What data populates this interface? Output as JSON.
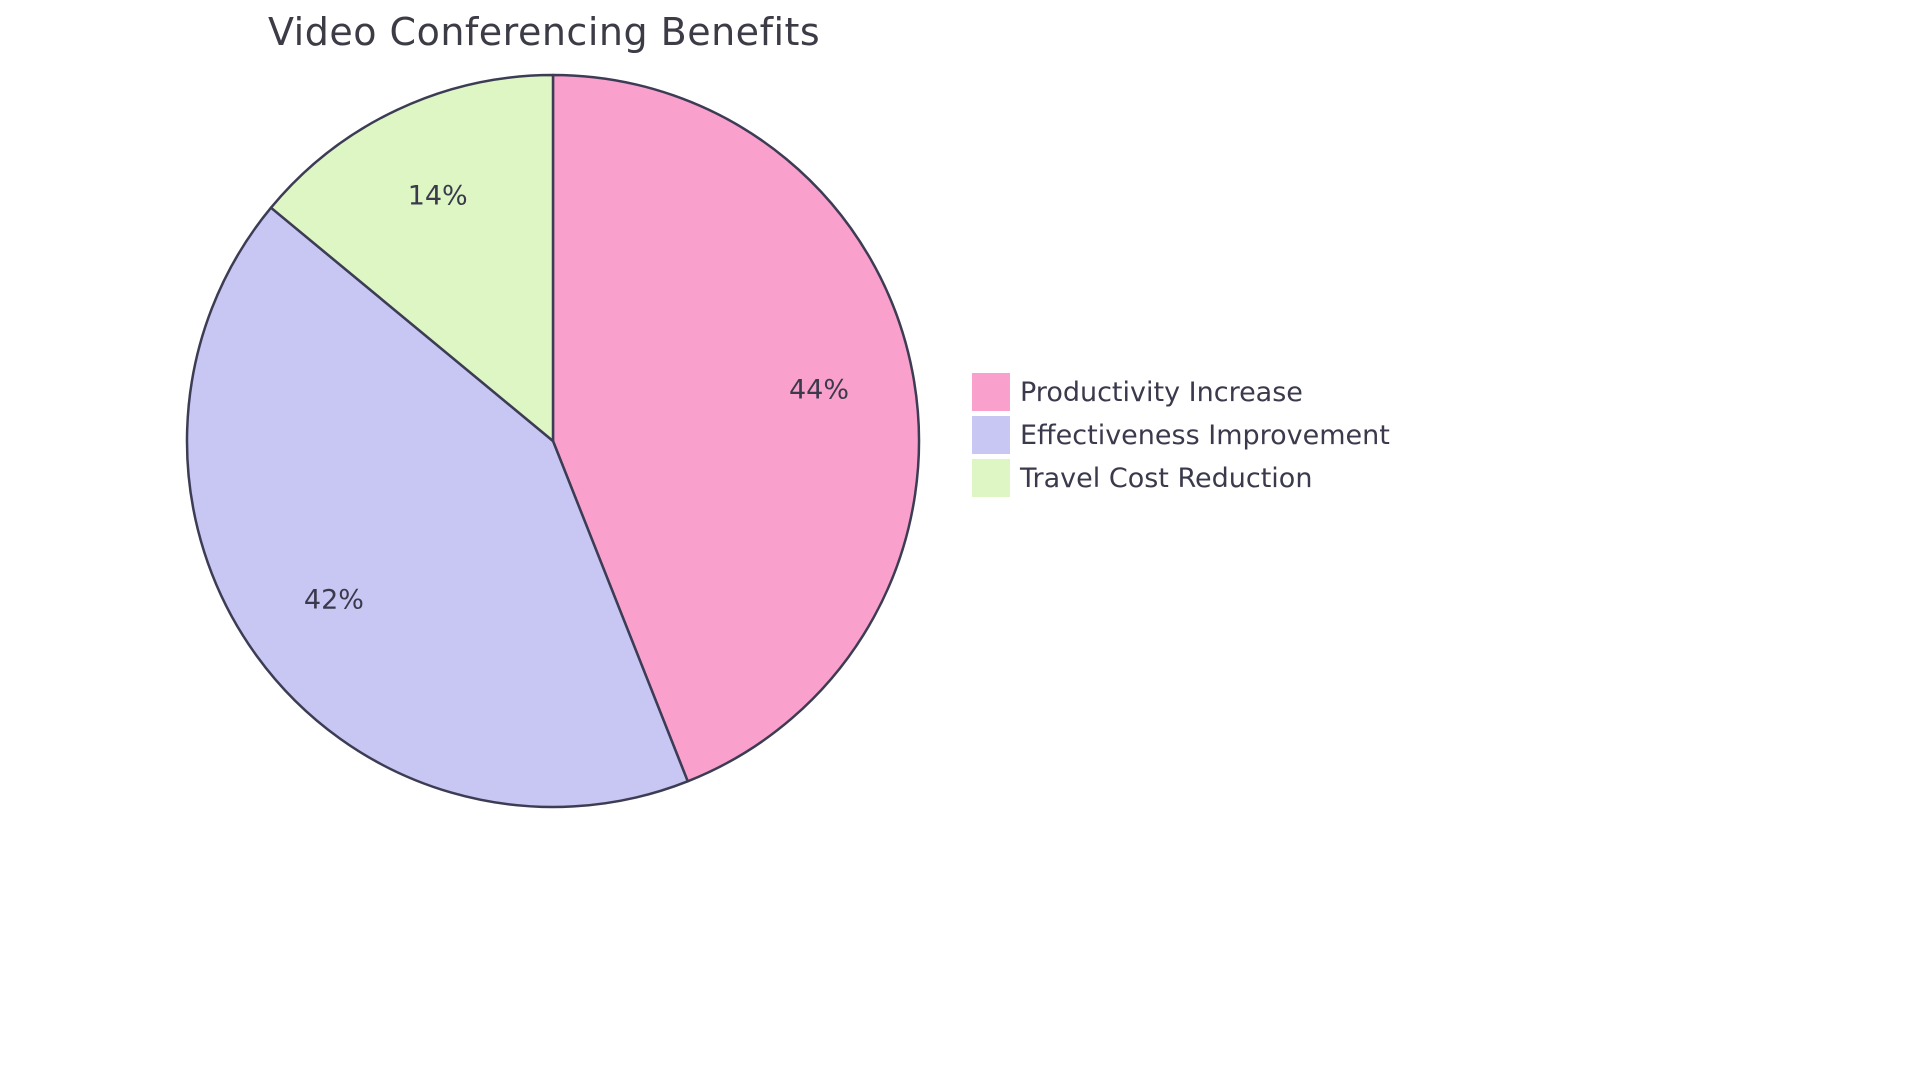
{
  "title": "Video Conferencing Benefits",
  "chart_data": {
    "type": "pie",
    "title": "Video Conferencing Benefits",
    "labels": [
      "Productivity Increase",
      "Effectiveness Improvement",
      "Travel Cost Reduction"
    ],
    "values": [
      44,
      42,
      14
    ],
    "value_labels": [
      "44%",
      "42%",
      "14%"
    ],
    "colors": [
      "#F9A1CC",
      "#C8C6F2",
      "#DDF6C4"
    ],
    "slice_border_color": "#3C3C55",
    "label_color": "#3A3A4C",
    "start_angle_deg": 0,
    "direction": "clockwise",
    "legend_position": "right"
  },
  "legend": {
    "items": [
      {
        "label": "Productivity Increase",
        "color": "#F9A1CC"
      },
      {
        "label": "Effectiveness Improvement",
        "color": "#C8C6F2"
      },
      {
        "label": "Travel Cost Reduction",
        "color": "#DDF6C4"
      }
    ]
  }
}
